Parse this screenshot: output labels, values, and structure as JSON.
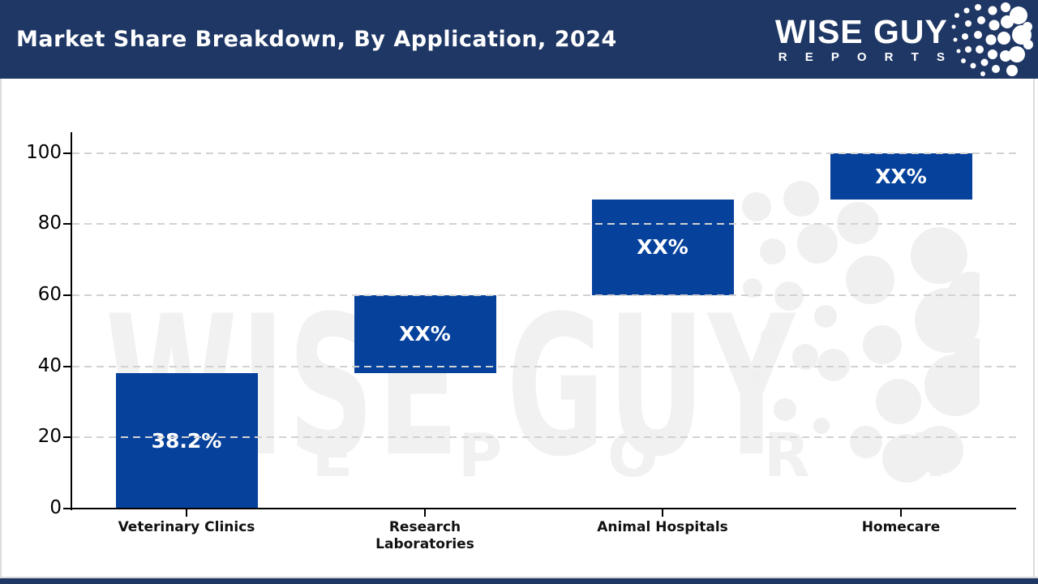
{
  "header": {
    "title": "Market Share Breakdown, By Application, 2024",
    "logo": {
      "name": "WISE GUY",
      "tagline": "R E P O R T S"
    }
  },
  "watermark": {
    "name": "WISE GUY",
    "tagline": "R E P O R T S"
  },
  "chart_data": {
    "type": "bar",
    "subtype": "waterfall",
    "title": "Market Share Breakdown, By Application, 2024",
    "categories": [
      "Veterinary Clinics",
      "Research Laboratories",
      "Animal Hospitals",
      "Homecare"
    ],
    "category_label_lines": [
      [
        "Veterinary Clinics"
      ],
      [
        "Research",
        "Laboratories"
      ],
      [
        "Animal Hospitals"
      ],
      [
        "Homecare"
      ]
    ],
    "segments": [
      {
        "category": "Veterinary Clinics",
        "start": 0,
        "end": 38.2,
        "label": "38.2%"
      },
      {
        "category": "Research Laboratories",
        "start": 38.2,
        "end": 60,
        "label": "XX%"
      },
      {
        "category": "Animal Hospitals",
        "start": 60,
        "end": 87,
        "label": "XX%"
      },
      {
        "category": "Homecare",
        "start": 87,
        "end": 100,
        "label": "XX%"
      }
    ],
    "ylim": [
      0,
      100
    ],
    "yticks": [
      0,
      20,
      40,
      60,
      80,
      100
    ],
    "grid": {
      "axis": "y",
      "style": "dashed",
      "on": true
    },
    "legend": "none"
  },
  "colors": {
    "header_bg": "#1F3765",
    "footer_bg": "#1F3765",
    "bar": "#06419C",
    "bar_label": "#ffffff",
    "grid": "#d2d2d2",
    "axis": "#000000",
    "watermark": "#f1f1f1"
  }
}
